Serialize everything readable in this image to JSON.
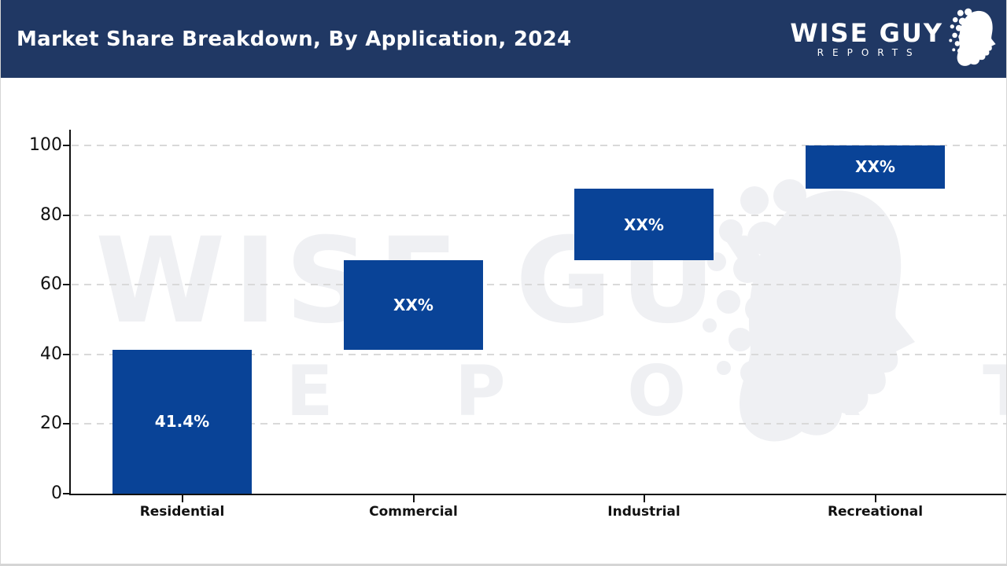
{
  "header": {
    "title": "Market Share Breakdown, By Application, 2024",
    "logo": {
      "line1": "WISE GUY",
      "line2": "REPORTS"
    }
  },
  "watermark": {
    "line1": "WISE GUY",
    "line2": "R E P O R T S"
  },
  "colors": {
    "header_bg": "#203864",
    "bar": "#094397",
    "grid": "#d9d9d9",
    "axis": "#111111",
    "bar_label_text": "#ffffff",
    "watermark": "#eff0f3"
  },
  "chart_data": {
    "type": "bar",
    "subtype": "waterfall",
    "title": "Market Share Breakdown, By Application, 2024",
    "xlabel": "",
    "ylabel": "",
    "categories": [
      "Residential",
      "Commercial",
      "Industrial",
      "Recreational"
    ],
    "segments": [
      {
        "category": "Residential",
        "start": 0,
        "end": 41.4,
        "label": "41.4%"
      },
      {
        "category": "Commercial",
        "start": 41.4,
        "end": 67.0,
        "label": "XX%"
      },
      {
        "category": "Industrial",
        "start": 67.0,
        "end": 87.6,
        "label": "XX%"
      },
      {
        "category": "Recreational",
        "start": 87.6,
        "end": 100,
        "label": "XX%"
      }
    ],
    "y_ticks": [
      0,
      20,
      40,
      60,
      80,
      100
    ],
    "ylim": [
      0,
      105
    ],
    "grid": "horizontal-dashed",
    "legend": "none"
  }
}
